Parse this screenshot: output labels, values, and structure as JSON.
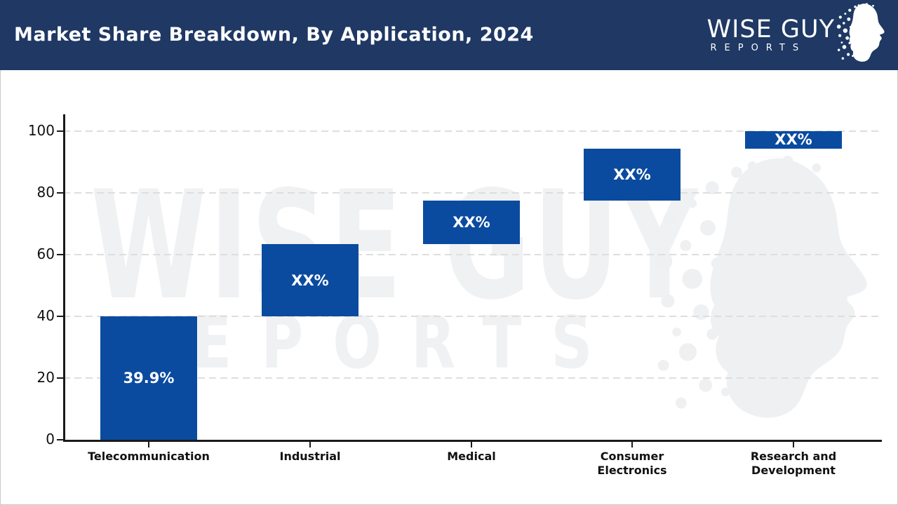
{
  "header": {
    "title": "Market Share Breakdown, By Application, 2024",
    "logo": {
      "line1": "WISE GUY",
      "line2": "REPORTS"
    }
  },
  "watermark": {
    "line1": "WISE GUY",
    "line2": "REPORTS"
  },
  "chart_data": {
    "type": "bar",
    "subtype": "waterfall",
    "title": "Market Share Breakdown, By Application, 2024",
    "unit": "percent",
    "categories": [
      "Telecommunication",
      "Industrial",
      "Medical",
      "Consumer Electronics",
      "Research and Development"
    ],
    "category_lines": [
      [
        "Telecommunication"
      ],
      [
        "Industrial"
      ],
      [
        "Medical"
      ],
      [
        "Consumer",
        "Electronics"
      ],
      [
        "Research and",
        "Development"
      ]
    ],
    "segments": [
      {
        "category": "Telecommunication",
        "start": 0,
        "end": 39.9,
        "value_label": "39.9%"
      },
      {
        "category": "Industrial",
        "start": 39.9,
        "end": 63.5,
        "value_label": "XX%"
      },
      {
        "category": "Medical",
        "start": 63.5,
        "end": 77.6,
        "value_label": "XX%"
      },
      {
        "category": "Consumer Electronics",
        "start": 77.6,
        "end": 94.4,
        "value_label": "XX%"
      },
      {
        "category": "Research and Development",
        "start": 94.4,
        "end": 100,
        "value_label": "XX%"
      }
    ],
    "ylim": [
      0,
      100
    ],
    "yticks": [
      0,
      20,
      40,
      60,
      80,
      100
    ],
    "grid": "dashed-horizontal",
    "legend": "none",
    "bar_color": "#0b4b9f",
    "bar_label_color": "#ffffff"
  },
  "colors": {
    "header_bg": "#1f3864",
    "bar": "#0b4b9f",
    "grid": "#dedede",
    "axis": "#1a1a1a",
    "watermark": "#f0f1f3"
  }
}
